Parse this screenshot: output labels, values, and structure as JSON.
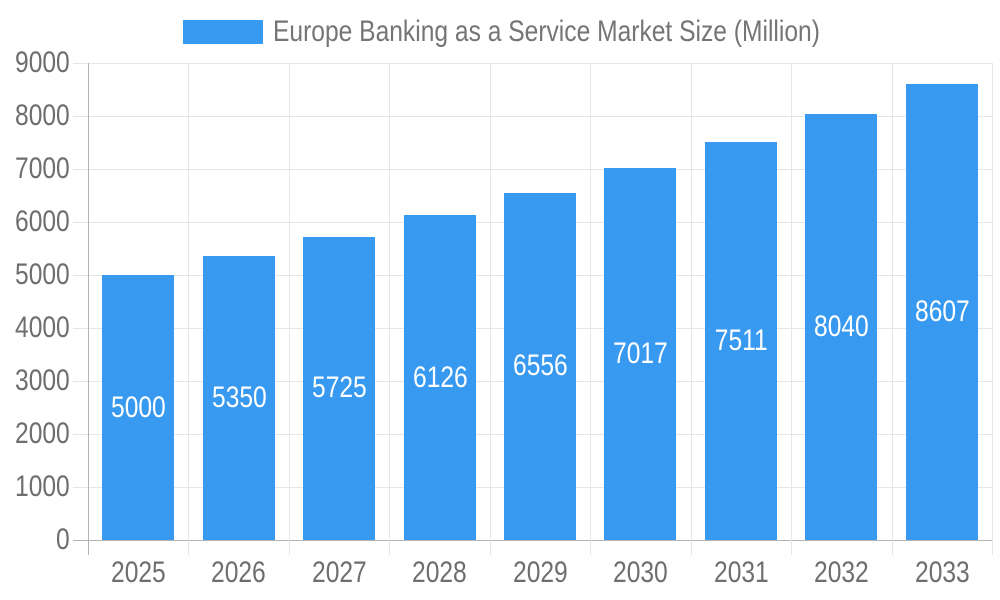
{
  "chart_data": {
    "type": "bar",
    "title": "Europe Banking as a Service Market Size (Million)",
    "legend": {
      "label": "Europe Banking as a Service Market Size (Million)",
      "position": "top"
    },
    "categories": [
      "2025",
      "2026",
      "2027",
      "2028",
      "2029",
      "2030",
      "2031",
      "2032",
      "2033"
    ],
    "series": [
      {
        "name": "Europe Banking as a Service Market Size (Million)",
        "values": [
          5000,
          5350,
          5725,
          6126,
          6556,
          7017,
          7511,
          8040,
          8607
        ]
      }
    ],
    "bar_value_labels": [
      "5000",
      "5350",
      "5725",
      "6126",
      "6556",
      "7017",
      "7511",
      "8040",
      "8607"
    ],
    "xlabel": "",
    "ylabel": "",
    "ylim": [
      0,
      9000
    ],
    "y_ticks": [
      "0",
      "1000",
      "2000",
      "3000",
      "4000",
      "5000",
      "6000",
      "7000",
      "8000",
      "9000"
    ],
    "grid": true,
    "legend_position": "top-center",
    "colors": {
      "bar": "#3899F0",
      "bar_label_text": "#FFFFFF",
      "grid_light": "#E6E6E6",
      "axis_dark": "#B3B3B3",
      "tick_label_text": "#6E6E6E",
      "legend_text": "#757575",
      "background": "#FFFFFF"
    }
  }
}
